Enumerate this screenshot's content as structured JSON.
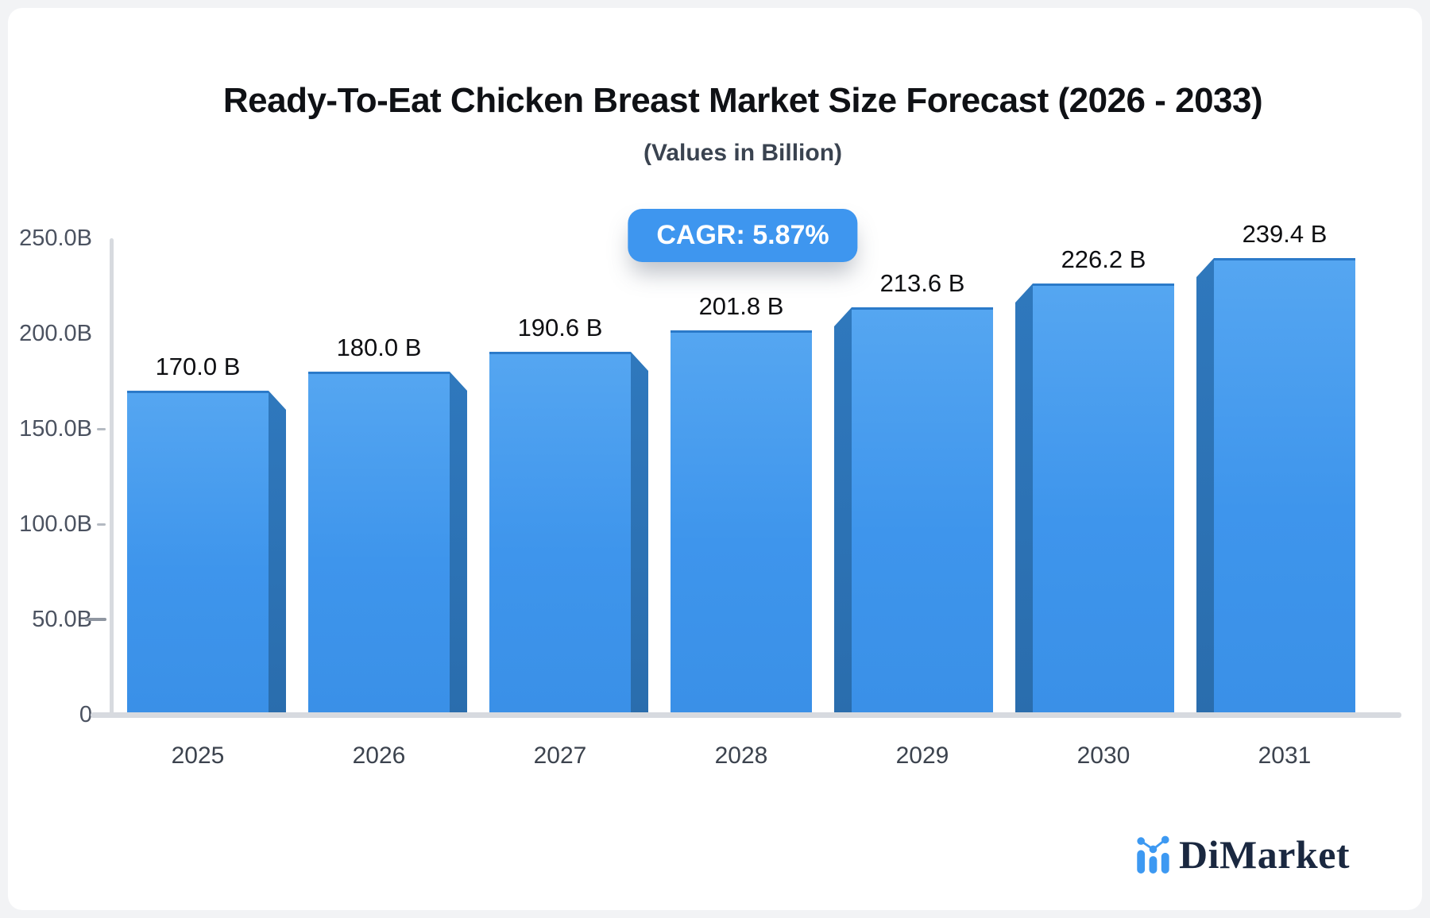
{
  "page": {
    "background": "#f2f3f5",
    "card_background": "#ffffff"
  },
  "header": {
    "title": "Ready-To-Eat Chicken Breast Market Size Forecast (2026 - 2033)",
    "subtitle": "(Values in Billion)"
  },
  "badge": {
    "label": "CAGR: 5.87%",
    "background": "#3e96ef",
    "text_color": "#ffffff"
  },
  "chart_data": {
    "type": "bar",
    "title": "Ready-To-Eat Chicken Breast Market Size Forecast (2026 - 2033)",
    "subtitle": "(Values in Billion)",
    "cagr": "5.87%",
    "categories": [
      "2025",
      "2026",
      "2027",
      "2028",
      "2029",
      "2030",
      "2031"
    ],
    "values": [
      170.0,
      180.0,
      190.6,
      201.8,
      213.6,
      226.2,
      239.4
    ],
    "value_labels": [
      "170.0 B",
      "180.0 B",
      "190.6 B",
      "201.8 B",
      "213.6 B",
      "226.2 B",
      "239.4 B"
    ],
    "unit": "Billion",
    "xlabel": "",
    "ylabel": "",
    "ylim": [
      0,
      250
    ],
    "grid": false,
    "legend": false,
    "bar_3d_sides": [
      "right",
      "right",
      "right",
      "none",
      "left",
      "left",
      "left"
    ],
    "yticks": [
      {
        "value": 0,
        "label": "0",
        "tick": "none"
      },
      {
        "value": 50,
        "label": "50.0B",
        "tick": "long"
      },
      {
        "value": 100,
        "label": "100.0B",
        "tick": "short"
      },
      {
        "value": 150,
        "label": "150.0B",
        "tick": "short"
      },
      {
        "value": 200,
        "label": "200.0B",
        "tick": "none"
      },
      {
        "value": 250,
        "label": "250.0B",
        "tick": "none"
      }
    ],
    "colors": {
      "bar_face_top": "#55a6f1",
      "bar_face_mid": "#3e95ec",
      "bar_face_bottom": "#3a90e7",
      "bar_top_edge": "#2b7ac9",
      "bar_side": "#2f78bd",
      "bar_side_dark": "#2a6dad",
      "axis_line": "#d7dadf",
      "value_label": "#0e0f12",
      "x_label": "#3c434e",
      "y_label": "#4b5260"
    }
  },
  "logo": {
    "name": "DiMarket",
    "icon": "bar-chart-logo-icon",
    "text_color": "#1a2840",
    "icon_color": "#3d99f2"
  }
}
